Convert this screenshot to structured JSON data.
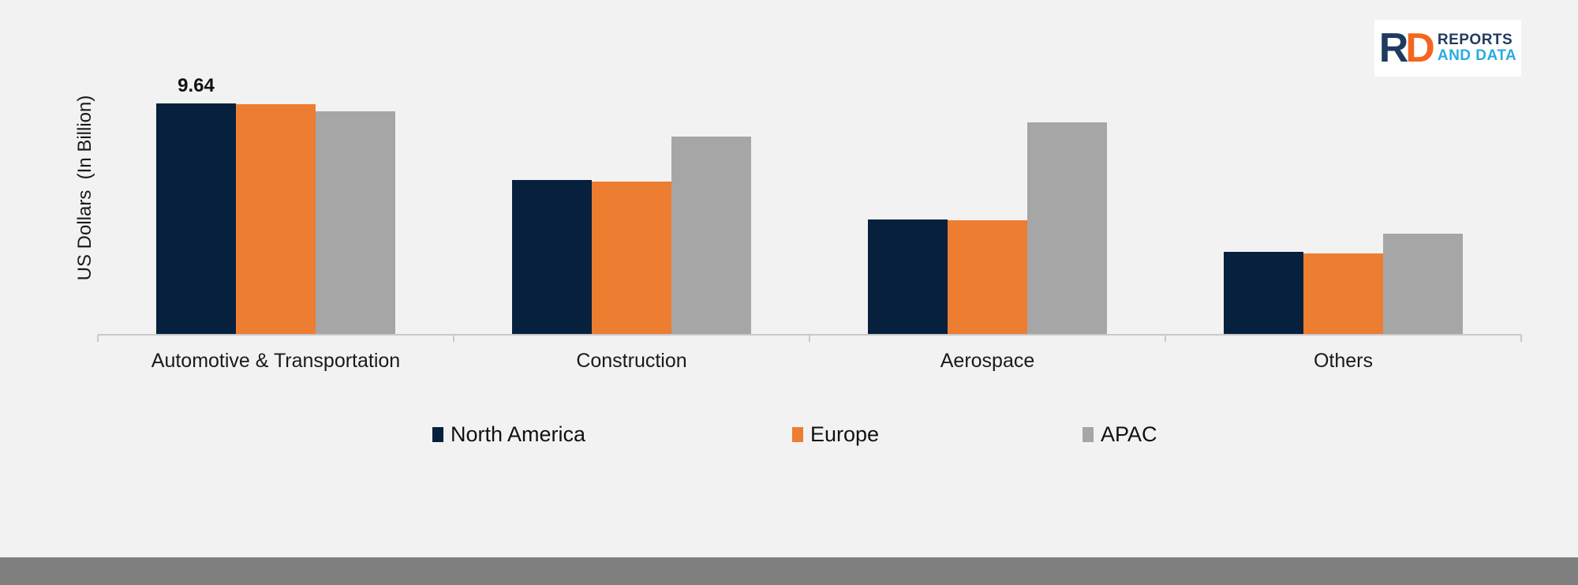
{
  "logo": {
    "mark_r": "R",
    "mark_d": "D",
    "line1": "REPORTS",
    "line2": "AND DATA"
  },
  "colors": {
    "background": "#F2F2F2",
    "footer_bar": "#7F7F7F",
    "axis_line": "#C9C9C9",
    "north_america": "#06203E",
    "europe": "#ED7D31",
    "apac": "#A6A6A6",
    "logo_navy": "#1E3A5F",
    "logo_orange": "#F4661F",
    "logo_blue": "#29ABE2"
  },
  "chart_data": {
    "type": "bar",
    "title": "",
    "ylabel": "US Dollars  (In Billion)",
    "xlabel": "",
    "ylim": [
      0,
      10
    ],
    "grid": false,
    "legend_position": "bottom",
    "categories": [
      "Automotive & Transportation",
      "Construction",
      "Aerospace",
      "Others"
    ],
    "series": [
      {
        "name": "North America",
        "color": "#06203E",
        "values": [
          9.64,
          6.45,
          4.8,
          3.45
        ]
      },
      {
        "name": "Europe",
        "color": "#ED7D31",
        "values": [
          9.6,
          6.38,
          4.77,
          3.4
        ]
      },
      {
        "name": "APAC",
        "color": "#A6A6A6",
        "values": [
          9.31,
          8.26,
          8.85,
          4.21
        ]
      }
    ],
    "annotations": [
      {
        "series_index": 0,
        "category_index": 0,
        "text": "9.64"
      }
    ]
  }
}
